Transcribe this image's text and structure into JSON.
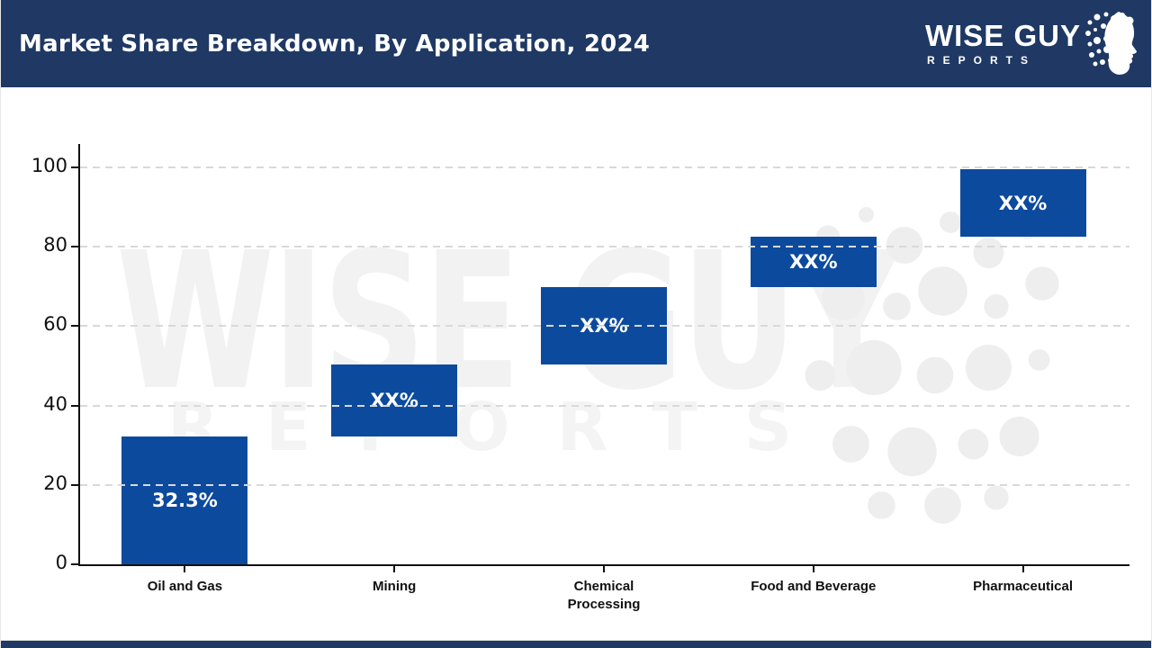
{
  "header": {
    "title": "Market Share Breakdown, By Application, 2024",
    "logo": {
      "wordmark": "WISE GUY",
      "subtitle": "REPORTS"
    },
    "bg_color": "#1f3864",
    "text_color": "#ffffff"
  },
  "watermark": {
    "line1": "WISE GUY",
    "line2": "REPORTS"
  },
  "chart_data": {
    "type": "bar",
    "subtype": "waterfall",
    "title": "Market Share Breakdown, By Application, 2024",
    "categories": [
      "Oil and Gas",
      "Mining",
      "Chemical Processing",
      "Food and Beverage",
      "Pharmaceutical"
    ],
    "segments": [
      {
        "category": "Oil and Gas",
        "start": 0,
        "end": 32.3,
        "label": "32.3%"
      },
      {
        "category": "Mining",
        "start": 32.3,
        "end": 50.3,
        "label": "XX%"
      },
      {
        "category": "Chemical Processing",
        "start": 50.3,
        "end": 69.8,
        "label": "XX%"
      },
      {
        "category": "Food and Beverage",
        "start": 69.8,
        "end": 82.5,
        "label": "XX%"
      },
      {
        "category": "Pharmaceutical",
        "start": 82.5,
        "end": 99.5,
        "label": "XX%"
      }
    ],
    "ylim": [
      0,
      100
    ],
    "yticks": [
      0,
      20,
      40,
      60,
      80,
      100
    ],
    "xlabel": "",
    "ylabel": "",
    "grid": "horizontal-dashed",
    "legend": null,
    "bar_color": "#0c4a9e",
    "bar_label_color": "#ffffff",
    "axis_color": "#111111",
    "gridline_color": "#d9d9d9"
  },
  "footer": {
    "bg_color": "#1f3864"
  }
}
